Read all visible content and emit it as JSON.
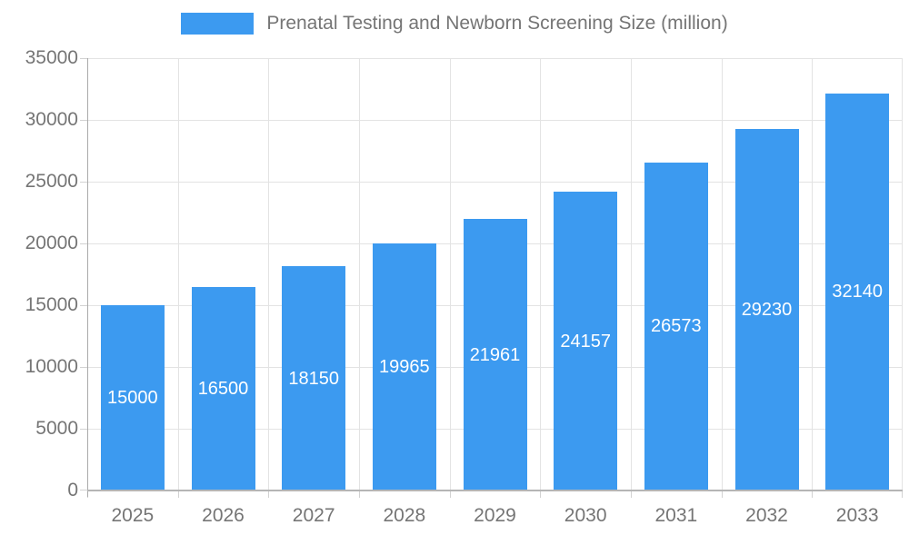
{
  "chart_data": {
    "type": "bar",
    "title": "Prenatal Testing and Newborn Screening Size (million)",
    "categories": [
      "2025",
      "2026",
      "2027",
      "2028",
      "2029",
      "2030",
      "2031",
      "2032",
      "2033"
    ],
    "values": [
      15000,
      16500,
      18150,
      19965,
      21961,
      24157,
      26573,
      29230,
      32140
    ],
    "xlabel": "",
    "ylabel": "",
    "ylim": [
      0,
      35000
    ],
    "ytick_step": 5000,
    "ytick_labels": [
      "0",
      "5000",
      "10000",
      "15000",
      "20000",
      "25000",
      "30000",
      "35000"
    ],
    "grid": true,
    "legend_position": "top-center",
    "colors": {
      "bar": "#3C9AF0",
      "value_label": "#FFFFFF",
      "axis_text": "#757575",
      "gridline": "#E3E3E3",
      "axis_line": "#ABABAB",
      "baseline": "#B5B5B5",
      "tick": "#D2D2D2",
      "background": "#FFFFFF"
    }
  }
}
